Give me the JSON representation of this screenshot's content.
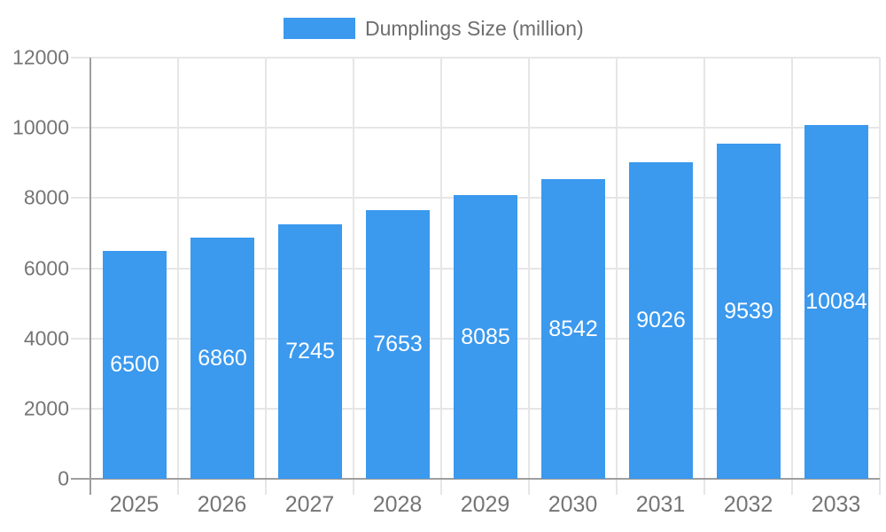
{
  "legend": {
    "label": "Dumplings Size (million)"
  },
  "colors": {
    "bar": "#3b99ee",
    "grid": "#e6e6e6",
    "axis": "#9e9e9e",
    "axis_label": "#757575",
    "legend_label": "#6e6e6e",
    "bar_label": "#ffffff"
  },
  "chart_data": {
    "type": "bar",
    "title": "",
    "xlabel": "",
    "ylabel": "",
    "legend_position": "top",
    "legend_entries": [
      "Dumplings Size (million)"
    ],
    "categories": [
      "2025",
      "2026",
      "2027",
      "2028",
      "2029",
      "2030",
      "2031",
      "2032",
      "2033"
    ],
    "values": [
      6500,
      6860,
      7245,
      7653,
      8085,
      8542,
      9026,
      9539,
      10084
    ],
    "bar_value_labels": [
      "6500",
      "6860",
      "7245",
      "7653",
      "8085",
      "8542",
      "9026",
      "9539",
      "10084"
    ],
    "ylim": [
      0,
      12000
    ],
    "yticks": [
      0,
      2000,
      4000,
      6000,
      8000,
      10000,
      12000
    ],
    "grid": true
  }
}
